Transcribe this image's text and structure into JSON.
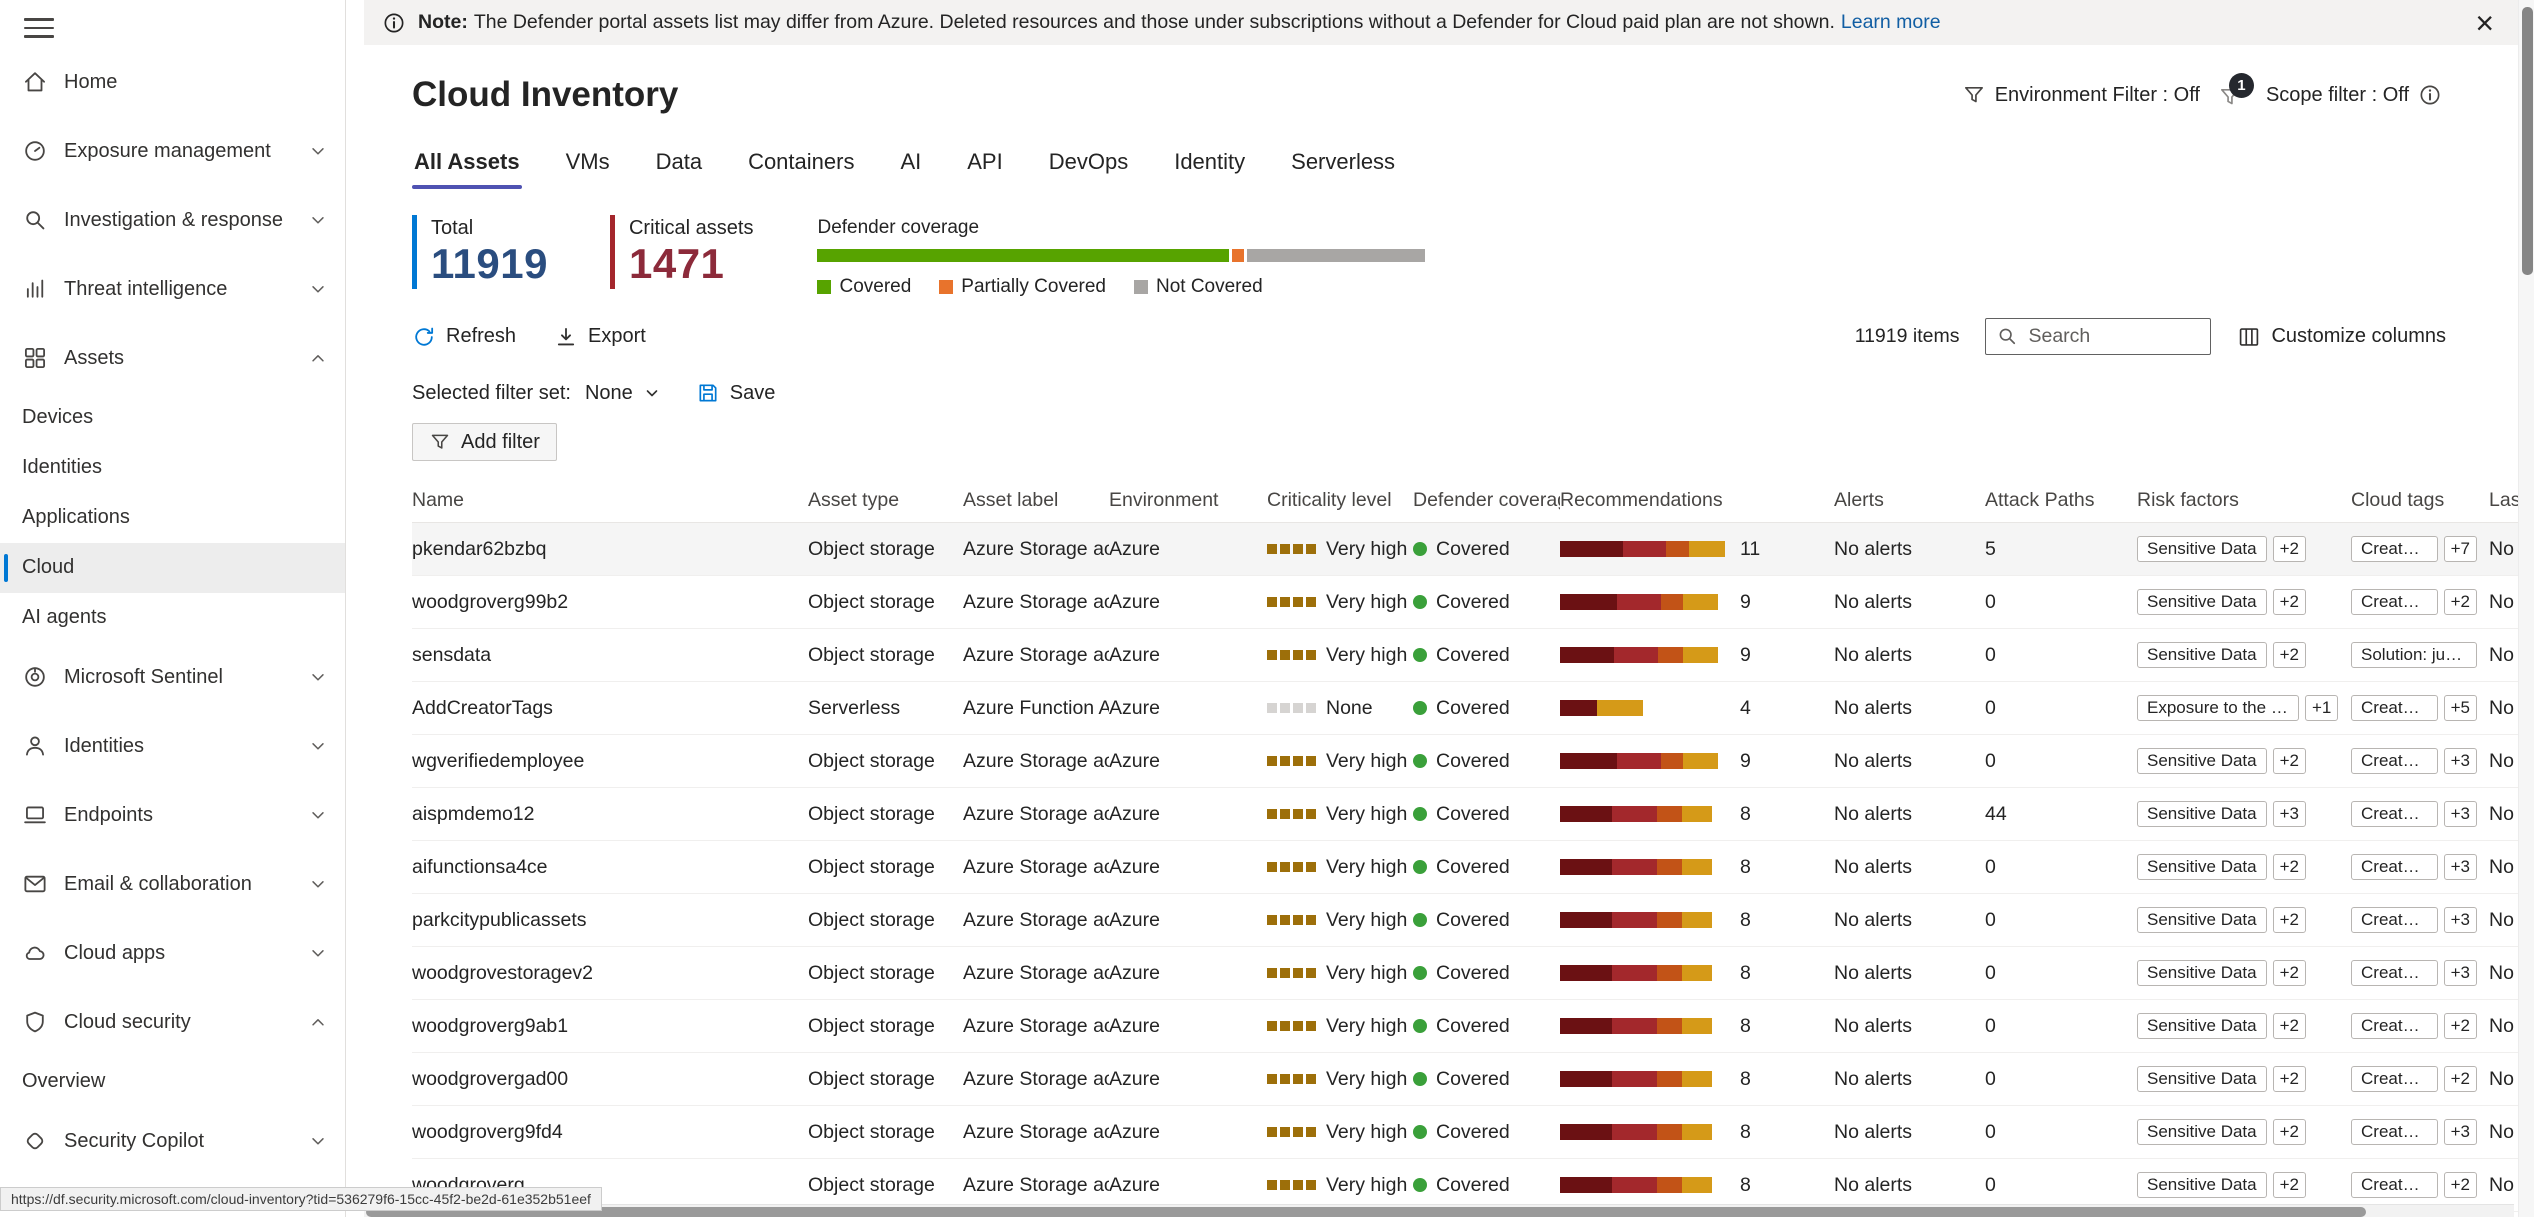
{
  "banner": {
    "note_label": "Note:",
    "text": "The Defender portal assets list may differ from Azure. Deleted resources and those under subscriptions without a Defender for Cloud paid plan are not shown.",
    "link": "Learn more"
  },
  "sidebar": {
    "items": [
      {
        "label": "Home",
        "icon": "home",
        "level": 1
      },
      {
        "label": "Exposure management",
        "icon": "exposure",
        "level": 1,
        "chevron": "down"
      },
      {
        "label": "Investigation & response",
        "icon": "investigation",
        "level": 1,
        "chevron": "down"
      },
      {
        "label": "Threat intelligence",
        "icon": "threat",
        "level": 1,
        "chevron": "down"
      },
      {
        "label": "Assets",
        "icon": "assets",
        "level": 1,
        "chevron": "up"
      },
      {
        "label": "Devices",
        "level": 2
      },
      {
        "label": "Identities",
        "level": 2
      },
      {
        "label": "Applications",
        "level": 2
      },
      {
        "label": "Cloud",
        "level": 2,
        "selected": true
      },
      {
        "label": "AI agents",
        "level": 2
      },
      {
        "label": "Microsoft Sentinel",
        "icon": "sentinel",
        "level": 1,
        "chevron": "down"
      },
      {
        "label": "Identities",
        "icon": "identities",
        "level": 1,
        "chevron": "down"
      },
      {
        "label": "Endpoints",
        "icon": "endpoints",
        "level": 1,
        "chevron": "down"
      },
      {
        "label": "Email & collaboration",
        "icon": "email",
        "level": 1,
        "chevron": "down"
      },
      {
        "label": "Cloud apps",
        "icon": "cloudapps",
        "level": 1,
        "chevron": "down"
      },
      {
        "label": "Cloud security",
        "icon": "cloudsecurity",
        "level": 1,
        "chevron": "up"
      },
      {
        "label": "Overview",
        "level": 2
      },
      {
        "label": "Security Copilot",
        "icon": "copilot",
        "level": 1,
        "chevron": "down"
      }
    ]
  },
  "header": {
    "title": "Cloud Inventory",
    "environment_filter": "Environment Filter : Off",
    "filter_badge": "1",
    "scope_filter": "Scope filter : Off"
  },
  "tabs": [
    {
      "label": "All Assets",
      "active": true
    },
    {
      "label": "VMs"
    },
    {
      "label": "Data"
    },
    {
      "label": "Containers"
    },
    {
      "label": "AI"
    },
    {
      "label": "API"
    },
    {
      "label": "DevOps"
    },
    {
      "label": "Identity"
    },
    {
      "label": "Serverless"
    }
  ],
  "stats": {
    "total_label": "Total",
    "total_value": "11919",
    "critical_label": "Critical assets",
    "critical_value": "1471",
    "total_accent": "#0078d4",
    "critical_accent": "#a4262c"
  },
  "coverage": {
    "label": "Defender coverage",
    "segments": [
      {
        "label": "Covered",
        "pct": 67,
        "color": "#57a300"
      },
      {
        "label": "Partially Covered",
        "pct": 2,
        "color": "#e8732c"
      },
      {
        "label": "Not Covered",
        "pct": 29,
        "color": "#a8a6a4"
      }
    ]
  },
  "toolbar": {
    "refresh_label": "Refresh",
    "export_label": "Export",
    "items_count": "11919 items",
    "search_placeholder": "Search",
    "customize_label": "Customize columns"
  },
  "filterbar": {
    "selected_label": "Selected filter set:",
    "selected_value": "None",
    "save_label": "Save",
    "add_filter_label": "Add filter"
  },
  "table": {
    "columns": [
      "Name",
      "Asset type",
      "Asset label",
      "Environment",
      "Criticality level",
      "Defender coverage",
      "Recommendations",
      "Alerts",
      "Attack Paths",
      "Risk factors",
      "Cloud tags",
      "Las"
    ],
    "rec_palette": [
      "#6b1113",
      "#a3282c",
      "#c25317",
      "#d59a18"
    ],
    "criticality_color": "#9d6f0a",
    "covered_dot_color": "#3aa03a",
    "rows": [
      {
        "name": "pkendar62bzbq",
        "asset_type": "Object storage",
        "asset_label": "Azure Storage acco...",
        "environment": "Azure",
        "criticality": "Very high",
        "criticality_filled": 4,
        "coverage": "Covered",
        "rec_bar": {
          "width_pct": 100,
          "segments": [
            38,
            26,
            14,
            22
          ]
        },
        "rec_count": "11",
        "alerts": "No alerts",
        "attack_paths": "5",
        "risk_factor": "Sensitive Data",
        "risk_more": "+2",
        "cloud_tag": "CreatedD...",
        "cloud_more": "+7",
        "last": "No",
        "highlight": true
      },
      {
        "name": "woodgroverg99b2",
        "asset_type": "Object storage",
        "asset_label": "Azure Storage acco...",
        "environment": "Azure",
        "criticality": "Very high",
        "criticality_filled": 4,
        "coverage": "Covered",
        "rec_bar": {
          "width_pct": 96,
          "segments": [
            36,
            28,
            14,
            22
          ]
        },
        "rec_count": "9",
        "alerts": "No alerts",
        "attack_paths": "0",
        "risk_factor": "Sensitive Data",
        "risk_more": "+2",
        "cloud_tag": "CreatedD...",
        "cloud_more": "+2",
        "last": "No"
      },
      {
        "name": "sensdata",
        "asset_type": "Object storage",
        "asset_label": "Azure Storage acco...",
        "environment": "Azure",
        "criticality": "Very high",
        "criticality_filled": 4,
        "coverage": "Covered",
        "rec_bar": {
          "width_pct": 96,
          "segments": [
            34,
            28,
            16,
            22
          ]
        },
        "rec_count": "9",
        "alerts": "No alerts",
        "attack_paths": "0",
        "risk_factor": "Sensitive Data",
        "risk_more": "+2",
        "cloud_tag": "Solution: jumps...",
        "cloud_more": "",
        "last": "No"
      },
      {
        "name": "AddCreatorTags",
        "asset_type": "Serverless",
        "asset_label": "Azure Function App",
        "environment": "Azure",
        "criticality": "None",
        "criticality_filled": 0,
        "coverage": "Covered",
        "rec_bar": {
          "width_pct": 50,
          "segments": [
            44,
            0,
            0,
            56
          ]
        },
        "rec_count": "4",
        "alerts": "No alerts",
        "attack_paths": "0",
        "risk_factor": "Exposure to the Int...",
        "risk_more": "+1",
        "cloud_tag": "CreatedD...",
        "cloud_more": "+5",
        "last": "No"
      },
      {
        "name": "wgverifiedemployee",
        "asset_type": "Object storage",
        "asset_label": "Azure Storage acco...",
        "environment": "Azure",
        "criticality": "Very high",
        "criticality_filled": 4,
        "coverage": "Covered",
        "rec_bar": {
          "width_pct": 96,
          "segments": [
            36,
            28,
            14,
            22
          ]
        },
        "rec_count": "9",
        "alerts": "No alerts",
        "attack_paths": "0",
        "risk_factor": "Sensitive Data",
        "risk_more": "+2",
        "cloud_tag": "CreatedD...",
        "cloud_more": "+3",
        "last": "No"
      },
      {
        "name": "aispmdemo12",
        "asset_type": "Object storage",
        "asset_label": "Azure Storage acco...",
        "environment": "Azure",
        "criticality": "Very high",
        "criticality_filled": 4,
        "coverage": "Covered",
        "rec_bar": {
          "width_pct": 92,
          "segments": [
            34,
            30,
            16,
            20
          ]
        },
        "rec_count": "8",
        "alerts": "No alerts",
        "attack_paths": "44",
        "risk_factor": "Sensitive Data",
        "risk_more": "+3",
        "cloud_tag": "CreatedD...",
        "cloud_more": "+3",
        "last": "No"
      },
      {
        "name": "aifunctionsa4ce",
        "asset_type": "Object storage",
        "asset_label": "Azure Storage acco...",
        "environment": "Azure",
        "criticality": "Very high",
        "criticality_filled": 4,
        "coverage": "Covered",
        "rec_bar": {
          "width_pct": 92,
          "segments": [
            34,
            30,
            16,
            20
          ]
        },
        "rec_count": "8",
        "alerts": "No alerts",
        "attack_paths": "0",
        "risk_factor": "Sensitive Data",
        "risk_more": "+2",
        "cloud_tag": "CreatedD...",
        "cloud_more": "+3",
        "last": "No"
      },
      {
        "name": "parkcitypublicassets",
        "asset_type": "Object storage",
        "asset_label": "Azure Storage acco...",
        "environment": "Azure",
        "criticality": "Very high",
        "criticality_filled": 4,
        "coverage": "Covered",
        "rec_bar": {
          "width_pct": 92,
          "segments": [
            34,
            30,
            16,
            20
          ]
        },
        "rec_count": "8",
        "alerts": "No alerts",
        "attack_paths": "0",
        "risk_factor": "Sensitive Data",
        "risk_more": "+2",
        "cloud_tag": "CreatedD...",
        "cloud_more": "+3",
        "last": "No"
      },
      {
        "name": "woodgrovestoragev2",
        "asset_type": "Object storage",
        "asset_label": "Azure Storage acco...",
        "environment": "Azure",
        "criticality": "Very high",
        "criticality_filled": 4,
        "coverage": "Covered",
        "rec_bar": {
          "width_pct": 92,
          "segments": [
            34,
            30,
            16,
            20
          ]
        },
        "rec_count": "8",
        "alerts": "No alerts",
        "attack_paths": "0",
        "risk_factor": "Sensitive Data",
        "risk_more": "+2",
        "cloud_tag": "CreatedD...",
        "cloud_more": "+3",
        "last": "No"
      },
      {
        "name": "woodgroverg9ab1",
        "asset_type": "Object storage",
        "asset_label": "Azure Storage acco...",
        "environment": "Azure",
        "criticality": "Very high",
        "criticality_filled": 4,
        "coverage": "Covered",
        "rec_bar": {
          "width_pct": 92,
          "segments": [
            34,
            30,
            16,
            20
          ]
        },
        "rec_count": "8",
        "alerts": "No alerts",
        "attack_paths": "0",
        "risk_factor": "Sensitive Data",
        "risk_more": "+2",
        "cloud_tag": "CreatedD...",
        "cloud_more": "+2",
        "last": "No"
      },
      {
        "name": "woodgrovergad00",
        "asset_type": "Object storage",
        "asset_label": "Azure Storage acco...",
        "environment": "Azure",
        "criticality": "Very high",
        "criticality_filled": 4,
        "coverage": "Covered",
        "rec_bar": {
          "width_pct": 92,
          "segments": [
            34,
            30,
            16,
            20
          ]
        },
        "rec_count": "8",
        "alerts": "No alerts",
        "attack_paths": "0",
        "risk_factor": "Sensitive Data",
        "risk_more": "+2",
        "cloud_tag": "CreatedD...",
        "cloud_more": "+2",
        "last": "No"
      },
      {
        "name": "woodgroverg9fd4",
        "asset_type": "Object storage",
        "asset_label": "Azure Storage acco...",
        "environment": "Azure",
        "criticality": "Very high",
        "criticality_filled": 4,
        "coverage": "Covered",
        "rec_bar": {
          "width_pct": 92,
          "segments": [
            34,
            30,
            16,
            20
          ]
        },
        "rec_count": "8",
        "alerts": "No alerts",
        "attack_paths": "0",
        "risk_factor": "Sensitive Data",
        "risk_more": "+2",
        "cloud_tag": "CreatedD...",
        "cloud_more": "+3",
        "last": "No"
      },
      {
        "name": "woodgroverg",
        "asset_type": "Object storage",
        "asset_label": "Azure Storage acco...",
        "environment": "Azure",
        "criticality": "Very high",
        "criticality_filled": 4,
        "coverage": "Covered",
        "rec_bar": {
          "width_pct": 92,
          "segments": [
            34,
            30,
            16,
            20
          ]
        },
        "rec_count": "8",
        "alerts": "No alerts",
        "attack_paths": "0",
        "risk_factor": "Sensitive Data",
        "risk_more": "+2",
        "cloud_tag": "CreatedD...",
        "cloud_more": "+2",
        "last": "No"
      }
    ]
  },
  "statusbar": {
    "url": "https://df.security.microsoft.com/cloud-inventory?tid=536279f6-15cc-45f2-be2d-61e352b51eef"
  }
}
